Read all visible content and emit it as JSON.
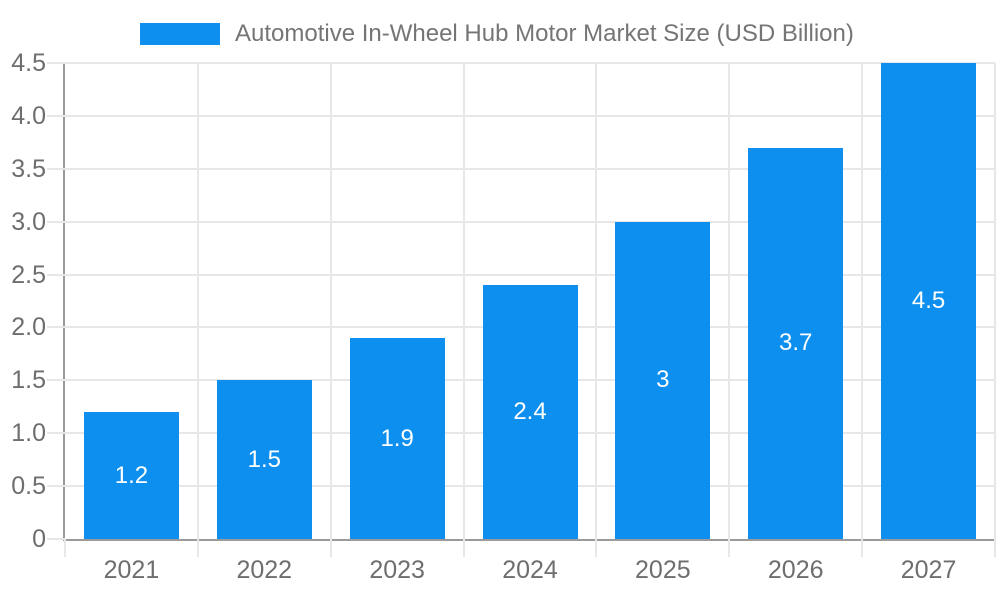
{
  "legend": {
    "label": "Automotive In-Wheel Hub Motor Market Size (USD Billion)"
  },
  "colors": {
    "bar": "#0d8ff0",
    "grid": "#e7e7e7",
    "axis_line": "#9a9a9a",
    "axis_text": "#6e6e6e",
    "legend_text": "#757575",
    "value_text": "#ffffff",
    "background": "#ffffff"
  },
  "chart_data": {
    "type": "bar",
    "title": "Automotive In-Wheel Hub Motor Market Size (USD Billion)",
    "categories": [
      "2021",
      "2022",
      "2023",
      "2024",
      "2025",
      "2026",
      "2027"
    ],
    "values": [
      1.2,
      1.5,
      1.9,
      2.4,
      3,
      3.7,
      4.5
    ],
    "value_labels": [
      "1.2",
      "1.5",
      "1.9",
      "2.4",
      "3",
      "3.7",
      "4.5"
    ],
    "xlabel": "",
    "ylabel": "",
    "ylim": [
      0,
      4.5
    ],
    "ytick_step": 0.5,
    "ytick_labels": [
      "0",
      "0.5",
      "1.0",
      "1.5",
      "2.0",
      "2.5",
      "3.0",
      "3.5",
      "4.0",
      "4.5"
    ],
    "grid": true,
    "legend_position": "top-left",
    "value_labels_inside_bars": true
  }
}
